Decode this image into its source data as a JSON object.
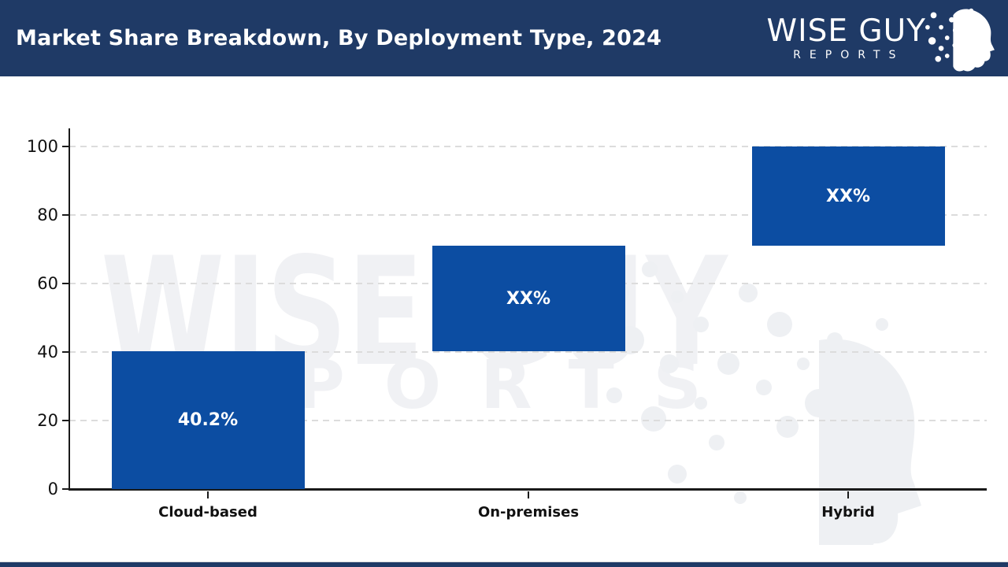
{
  "header": {
    "title": "Market Share Breakdown, By Deployment Type, 2024",
    "logo": {
      "line1": "WISE GUY",
      "line2": "REPORTS"
    }
  },
  "watermark": {
    "line1": "WISE GUY",
    "line2": "REPORTS"
  },
  "chart_data": {
    "type": "bar",
    "subtype": "waterfall",
    "title": "Market Share Breakdown, By Deployment Type, 2024",
    "categories": [
      "Cloud-based",
      "On-premises",
      "Hybrid"
    ],
    "segments": [
      {
        "category": "Cloud-based",
        "start": 0,
        "end": 40.2,
        "label": "40.2%"
      },
      {
        "category": "On-premises",
        "start": 40.2,
        "end": 71,
        "label": "XX%"
      },
      {
        "category": "Hybrid",
        "start": 71,
        "end": 100,
        "label": "XX%"
      }
    ],
    "ylim": [
      0,
      100
    ],
    "yticks": [
      0,
      20,
      40,
      60,
      80,
      100
    ],
    "grid": "horizontal-dashed",
    "legend": "none",
    "bar_color": "#0c4da2",
    "bar_label_color": "#ffffff"
  },
  "colors": {
    "header_bg": "#1f3a66",
    "footer_bg": "#1f3a66",
    "axis": "#1a1a1a",
    "grid": "#dcdcdc",
    "tick_text": "#111111",
    "watermark": "#f0f1f4"
  }
}
